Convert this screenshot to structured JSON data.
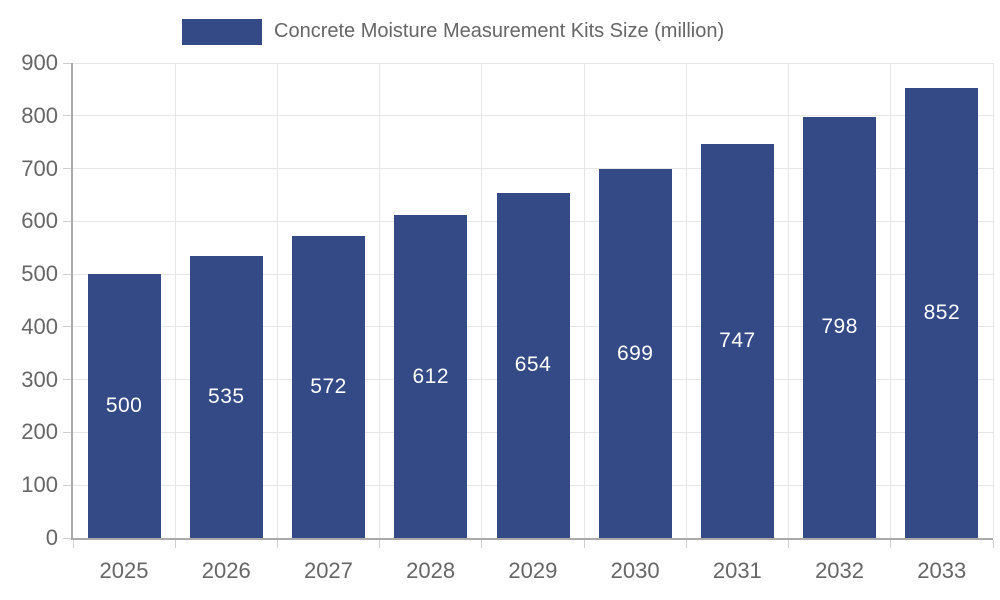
{
  "chart_data": {
    "type": "bar",
    "title": "Concrete Moisture Measurement Kits Size (million)",
    "categories": [
      "2025",
      "2026",
      "2027",
      "2028",
      "2029",
      "2030",
      "2031",
      "2032",
      "2033"
    ],
    "values": [
      500,
      535,
      572,
      612,
      654,
      699,
      747,
      798,
      852
    ],
    "xlabel": "",
    "ylabel": "",
    "ylim": [
      0,
      900
    ],
    "ytick_step": 100,
    "yticks": [
      0,
      100,
      200,
      300,
      400,
      500,
      600,
      700,
      800,
      900
    ],
    "grid": true,
    "legend_position": "top",
    "value_label_position": "inside-center",
    "colors": {
      "bar": "#344A87",
      "value_label": "#FFFFFF",
      "axis_line": "#A9A9A9",
      "gridline": "#E6E6E6",
      "tick": "#CFCFCF",
      "tick_label": "#666666",
      "legend_text": "#666666"
    }
  }
}
